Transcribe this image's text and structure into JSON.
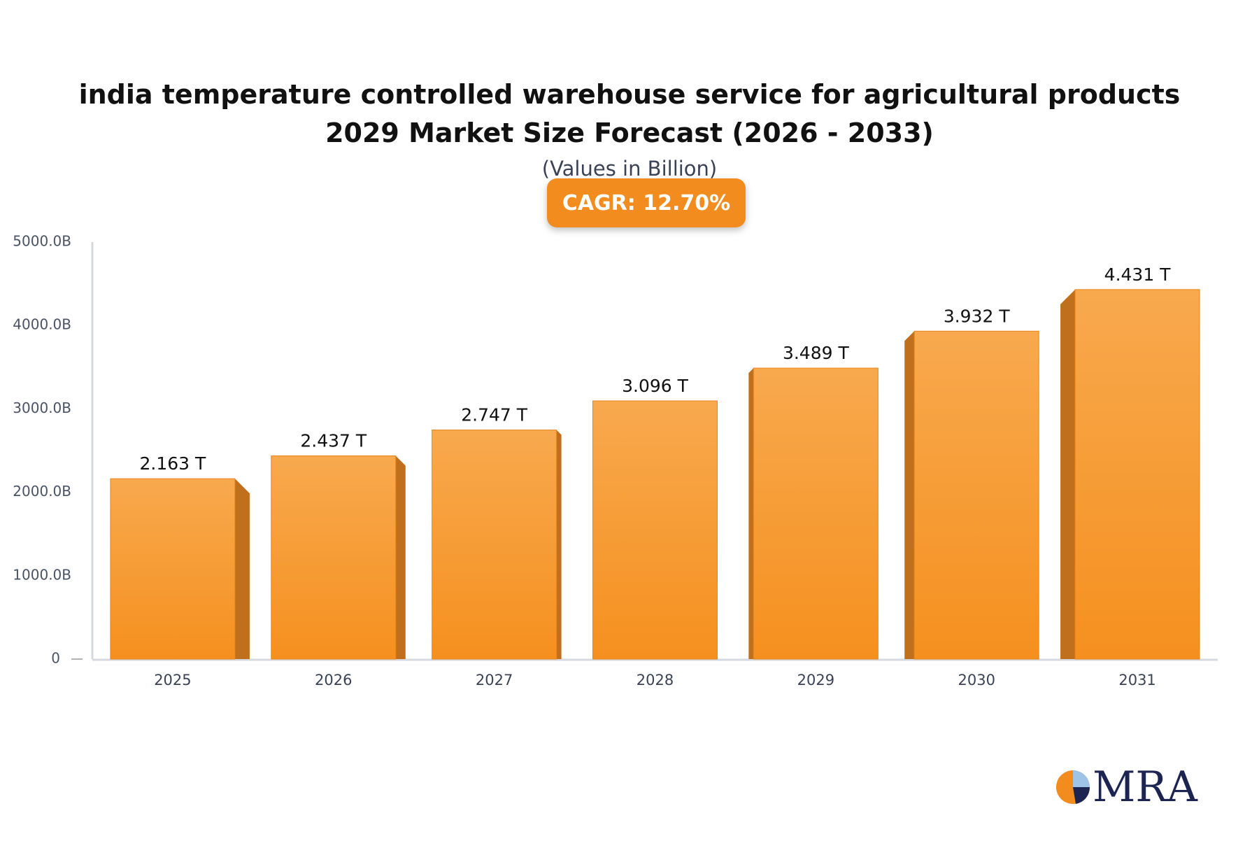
{
  "chart_data": {
    "type": "bar",
    "title": "india temperature controlled warehouse service for agricultural products 2029 Market Size Forecast (2026 - 2033)",
    "subtitle": "(Values in Billion)",
    "annotation": "CAGR: 12.70%",
    "categories": [
      "2025",
      "2026",
      "2027",
      "2028",
      "2029",
      "2030",
      "2031"
    ],
    "values": [
      2163,
      2437,
      2747,
      3096,
      3489,
      3932,
      4431
    ],
    "value_labels": [
      "2.163 T",
      "2.437 T",
      "2.747 T",
      "3.096 T",
      "3.489 T",
      "3.932 T",
      "4.431 T"
    ],
    "color": "#f5901f",
    "ylim": [
      0,
      5000
    ],
    "yticks": [
      0,
      {
        "value": 1000,
        "label": "1000.0B"
      },
      {
        "value": 2000,
        "label": "2000.0B"
      },
      {
        "value": 3000,
        "label": "3000.0B"
      },
      {
        "value": 4000,
        "label": "4000.0B"
      },
      {
        "value": 5000,
        "label": "5000.0B"
      }
    ],
    "grid": false
  },
  "logo": "MRA"
}
